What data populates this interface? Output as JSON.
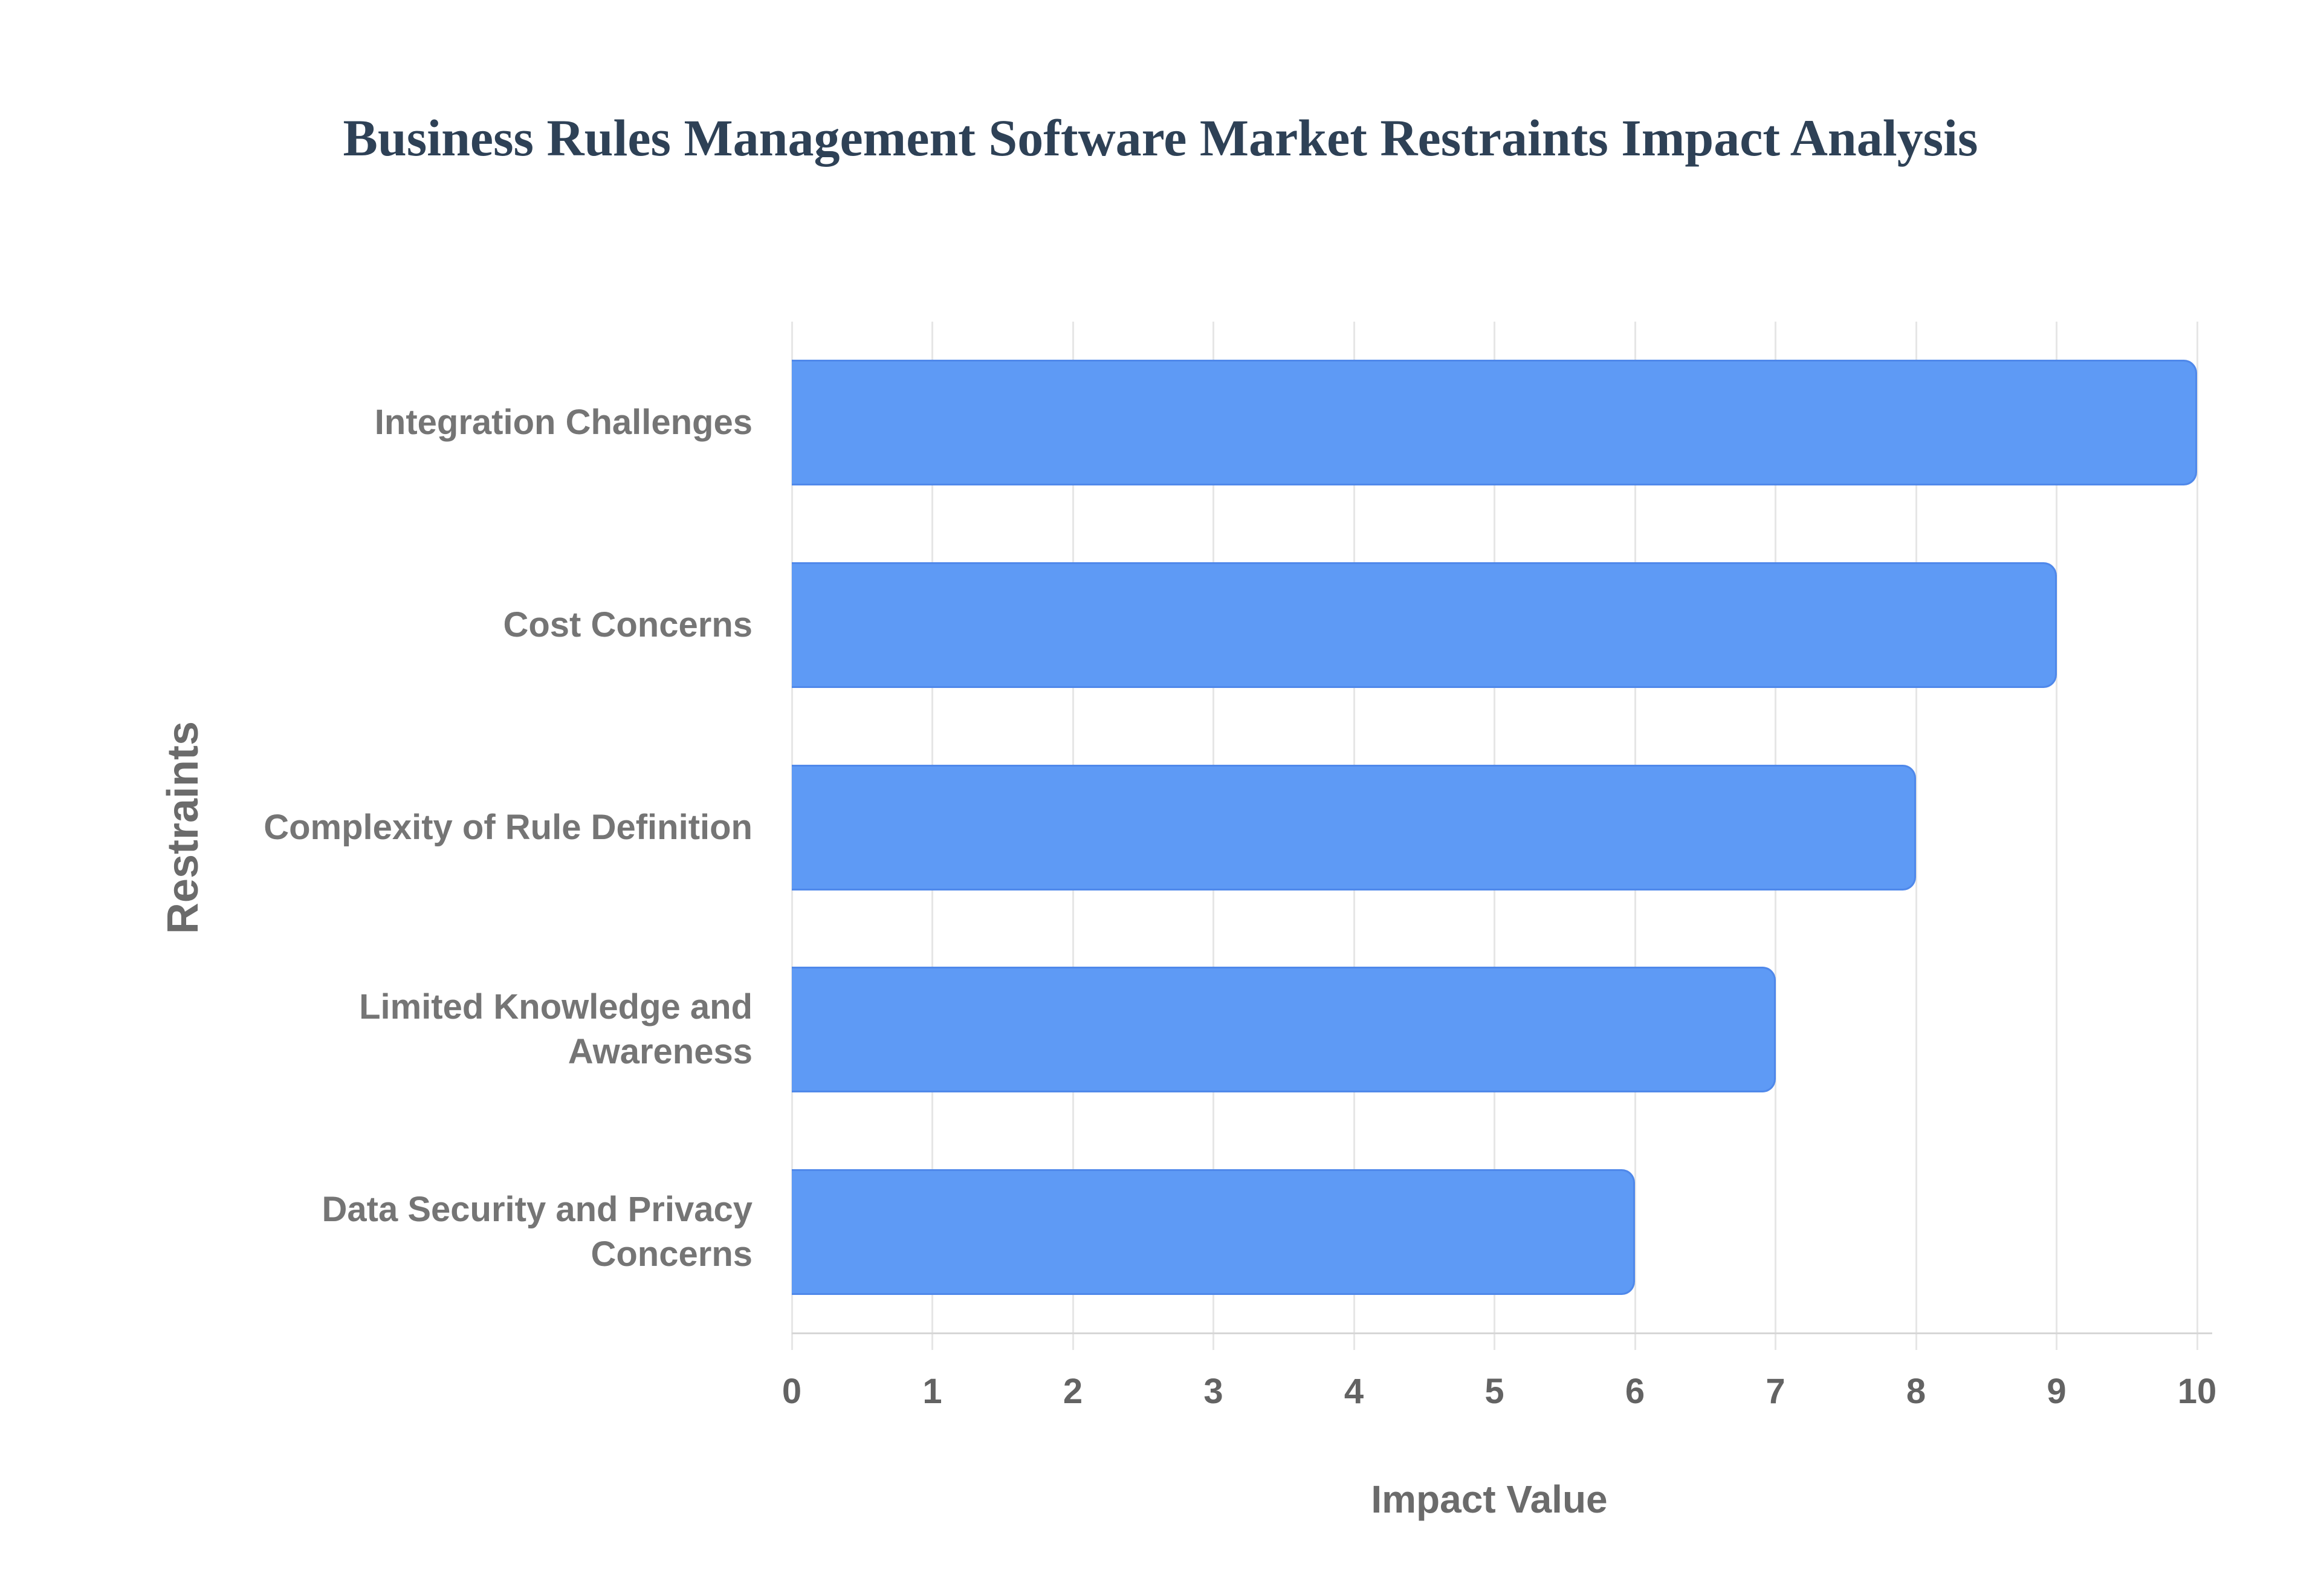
{
  "chart_data": {
    "type": "bar",
    "orientation": "horizontal",
    "title": "Business Rules Management Software Market Restraints Impact Analysis",
    "categories": [
      "Integration Challenges",
      "Cost Concerns",
      "Complexity of Rule Definition",
      "Limited Knowledge and Awareness",
      "Data Security and Privacy Concerns"
    ],
    "values": [
      10,
      9,
      8,
      7,
      6
    ],
    "xlabel": "Impact Value",
    "ylabel": "Restraints",
    "xlim": [
      0,
      10
    ],
    "x_ticks": [
      0,
      1,
      2,
      3,
      4,
      5,
      6,
      7,
      8,
      9,
      10
    ],
    "grid": "vertical",
    "legend": "none",
    "colors": {
      "bar": "#5e9af5",
      "bar_edge": "#4f88ea",
      "title": "#2e4156",
      "category_label": "#757575",
      "tick_label": "#636363",
      "axis_title": "#6b6b6b",
      "gridline": "#e6e6e6",
      "baseline": "#d6d6d6",
      "background": "#ffffff"
    }
  }
}
